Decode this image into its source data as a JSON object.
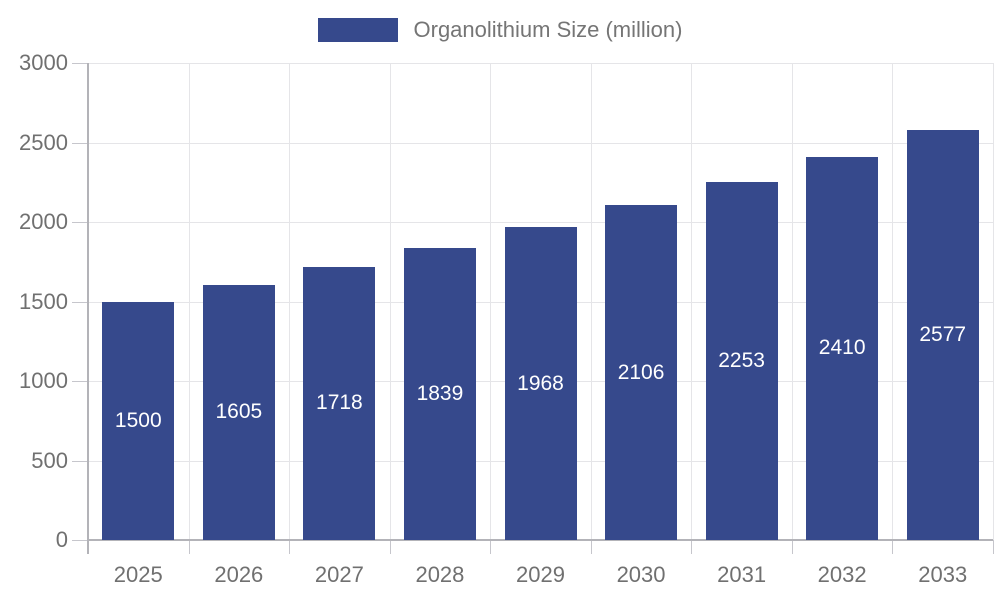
{
  "chart_data": {
    "type": "bar",
    "title": "Organolithium Size (million)",
    "categories": [
      "2025",
      "2026",
      "2027",
      "2028",
      "2029",
      "2030",
      "2031",
      "2032",
      "2033"
    ],
    "series": [
      {
        "name": "Organolithium Size (million)",
        "values": [
          1500,
          1605,
          1718,
          1839,
          1968,
          2106,
          2253,
          2410,
          2577
        ]
      }
    ],
    "bar_labels_shown": true,
    "bar_label_position": "inside-center",
    "xlabel": "",
    "ylabel": "",
    "ylim": [
      0,
      3000
    ],
    "yticks": [
      0,
      500,
      1000,
      1500,
      2000,
      2500,
      3000
    ],
    "grid": "horizontal-and-vertical",
    "legend_position": "top-center",
    "colors": {
      "bar": "#36498c",
      "bar_label_text": "#ffffff",
      "gridline": "#e5e5e8",
      "axis_line": "#b3b3b8",
      "tick": "#c6c6cc",
      "tick_label_text": "#707070",
      "legend_text": "#757575",
      "background": "#ffffff"
    }
  }
}
